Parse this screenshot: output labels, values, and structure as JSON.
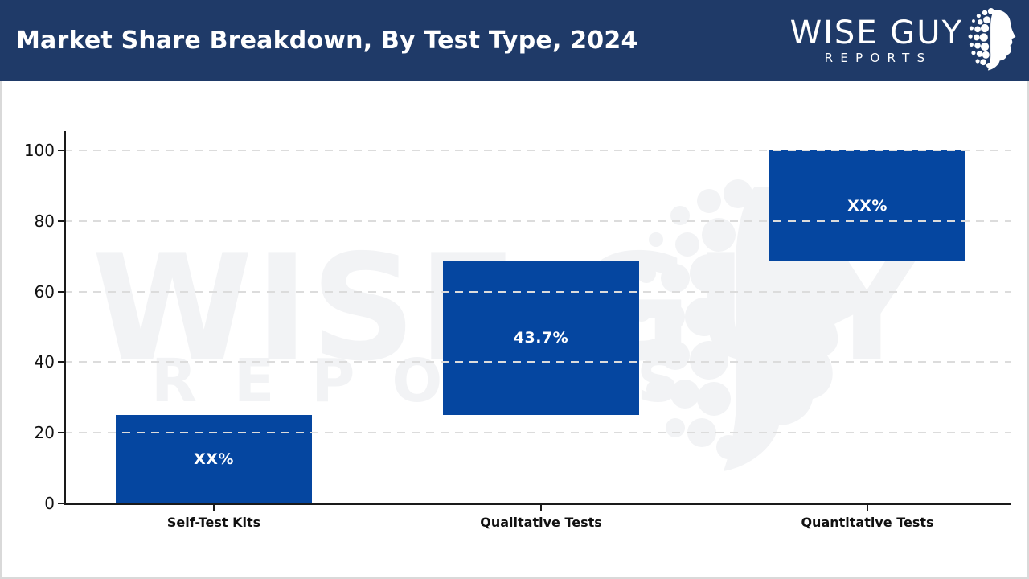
{
  "header": {
    "title": "Market Share Breakdown, By Test Type, 2024",
    "logo": {
      "line1": "WISE GUY",
      "line2": "REPORTS"
    }
  },
  "watermark": {
    "line1": "WISE GUY",
    "line2": "REPORTS"
  },
  "colors": {
    "header_bg": "#1f3a68",
    "bar": "#0546a0",
    "bar_label_text": "#ffffff",
    "grid": "#dcdcdc",
    "axis": "#1a1a1a",
    "watermark": "#f2f3f5"
  },
  "chart_data": {
    "type": "bar",
    "subtype": "waterfall",
    "title": "Market Share Breakdown, By Test Type, 2024",
    "categories": [
      "Self-Test Kits",
      "Qualitative Tests",
      "Quantitative Tests"
    ],
    "segments": [
      {
        "category": "Self-Test Kits",
        "start": 0,
        "end": 25,
        "label": "XX%"
      },
      {
        "category": "Qualitative Tests",
        "start": 25,
        "end": 68.7,
        "label": "43.7%"
      },
      {
        "category": "Quantitative Tests",
        "start": 68.7,
        "end": 100,
        "label": "XX%"
      }
    ],
    "xlabel": "",
    "ylabel": "",
    "yticks": [
      0,
      20,
      40,
      60,
      80,
      100
    ],
    "ylim": [
      0,
      100
    ],
    "grid": "dashed-horizontal",
    "legend": "none"
  }
}
